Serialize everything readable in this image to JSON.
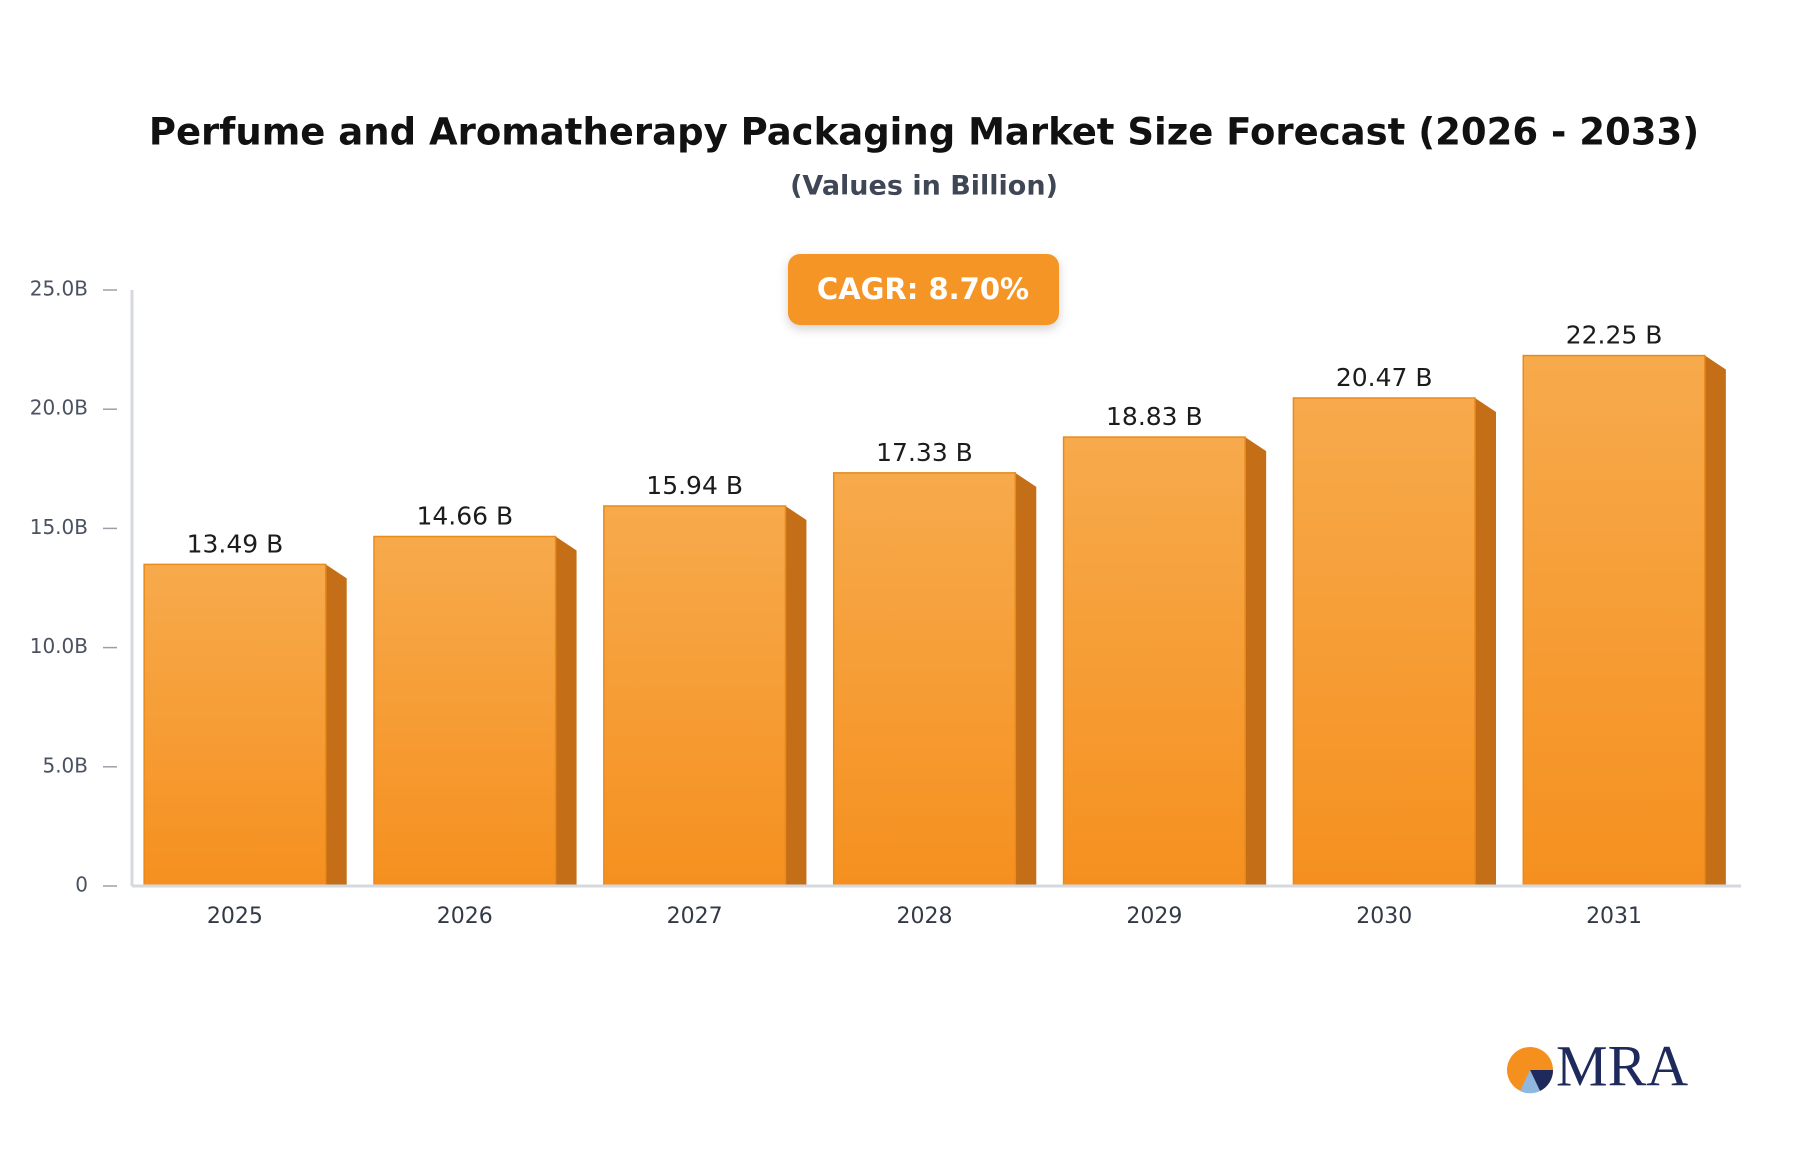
{
  "chart_data": {
    "type": "bar",
    "title": "Perfume and Aromatherapy Packaging Market Size Forecast (2026 - 2033)",
    "subtitle": "(Values in Billion)",
    "annotation": "CAGR: 8.70%",
    "logo": "MRA",
    "categories": [
      "2025",
      "2026",
      "2027",
      "2028",
      "2029",
      "2030",
      "2031"
    ],
    "values": [
      13.49,
      14.66,
      15.94,
      17.33,
      18.83,
      20.47,
      22.25
    ],
    "value_labels": [
      "13.49 B",
      "14.66 B",
      "15.94 B",
      "17.33 B",
      "18.83 B",
      "20.47 B",
      "22.25 B"
    ],
    "color": "#f7a13a",
    "ylim": [
      0,
      25
    ],
    "yticks": [
      0,
      {
        "value": 5,
        "label": "5.0B"
      },
      {
        "value": 10,
        "label": "10.0B"
      },
      {
        "value": 15,
        "label": "15.0B"
      },
      {
        "value": 20,
        "label": "20.0B"
      },
      {
        "value": 25,
        "label": "25.0B"
      }
    ],
    "grid": false
  }
}
